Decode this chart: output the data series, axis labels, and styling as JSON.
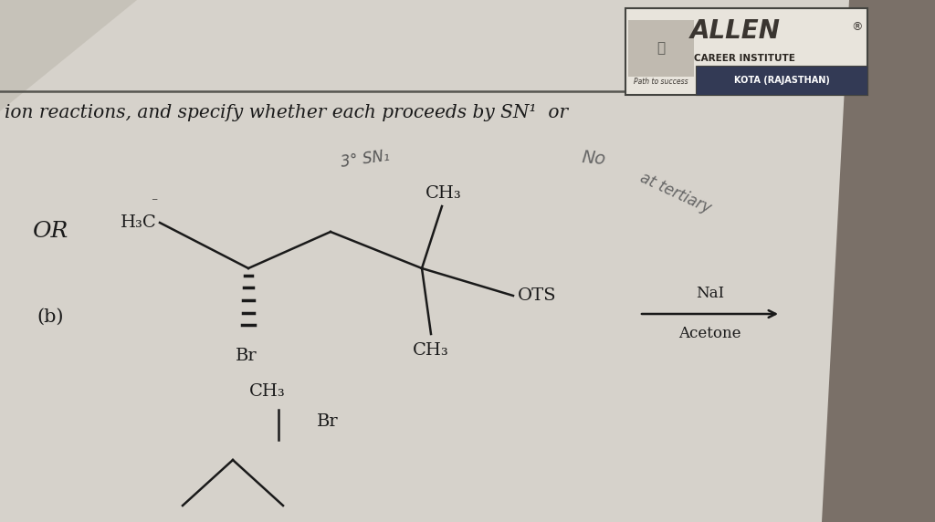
{
  "bg_color": "#b8b2a8",
  "page_color": "#d8d4cc",
  "page_color2": "#c8c4bc",
  "title_text": "ion reactions, and specify whether each proceeds by SN¹  or",
  "title_fontsize": 15,
  "label_b": "(b)",
  "label_or": "OR",
  "handwritten_sn": "3° SN₁",
  "handwritten_no": "No",
  "handwritten_at": "at tertiary",
  "H3C_label": "H₃C",
  "CH3_top": "CH₃",
  "CH3_bottom": "CH₃",
  "Br_label": "Br",
  "OTS_label": "OTS",
  "arrow_label_top": "NaI",
  "arrow_label_bottom": "Acetone",
  "bottom_CH3": "CH₃",
  "bottom_Br": "Br",
  "allen_text": "ALLEN",
  "allen_subtitle": "CAREER INSTITUTE",
  "allen_sub2": "KOTA (RAJASTHAN)",
  "allen_path": "Path to success",
  "minus_sign": "⁻"
}
